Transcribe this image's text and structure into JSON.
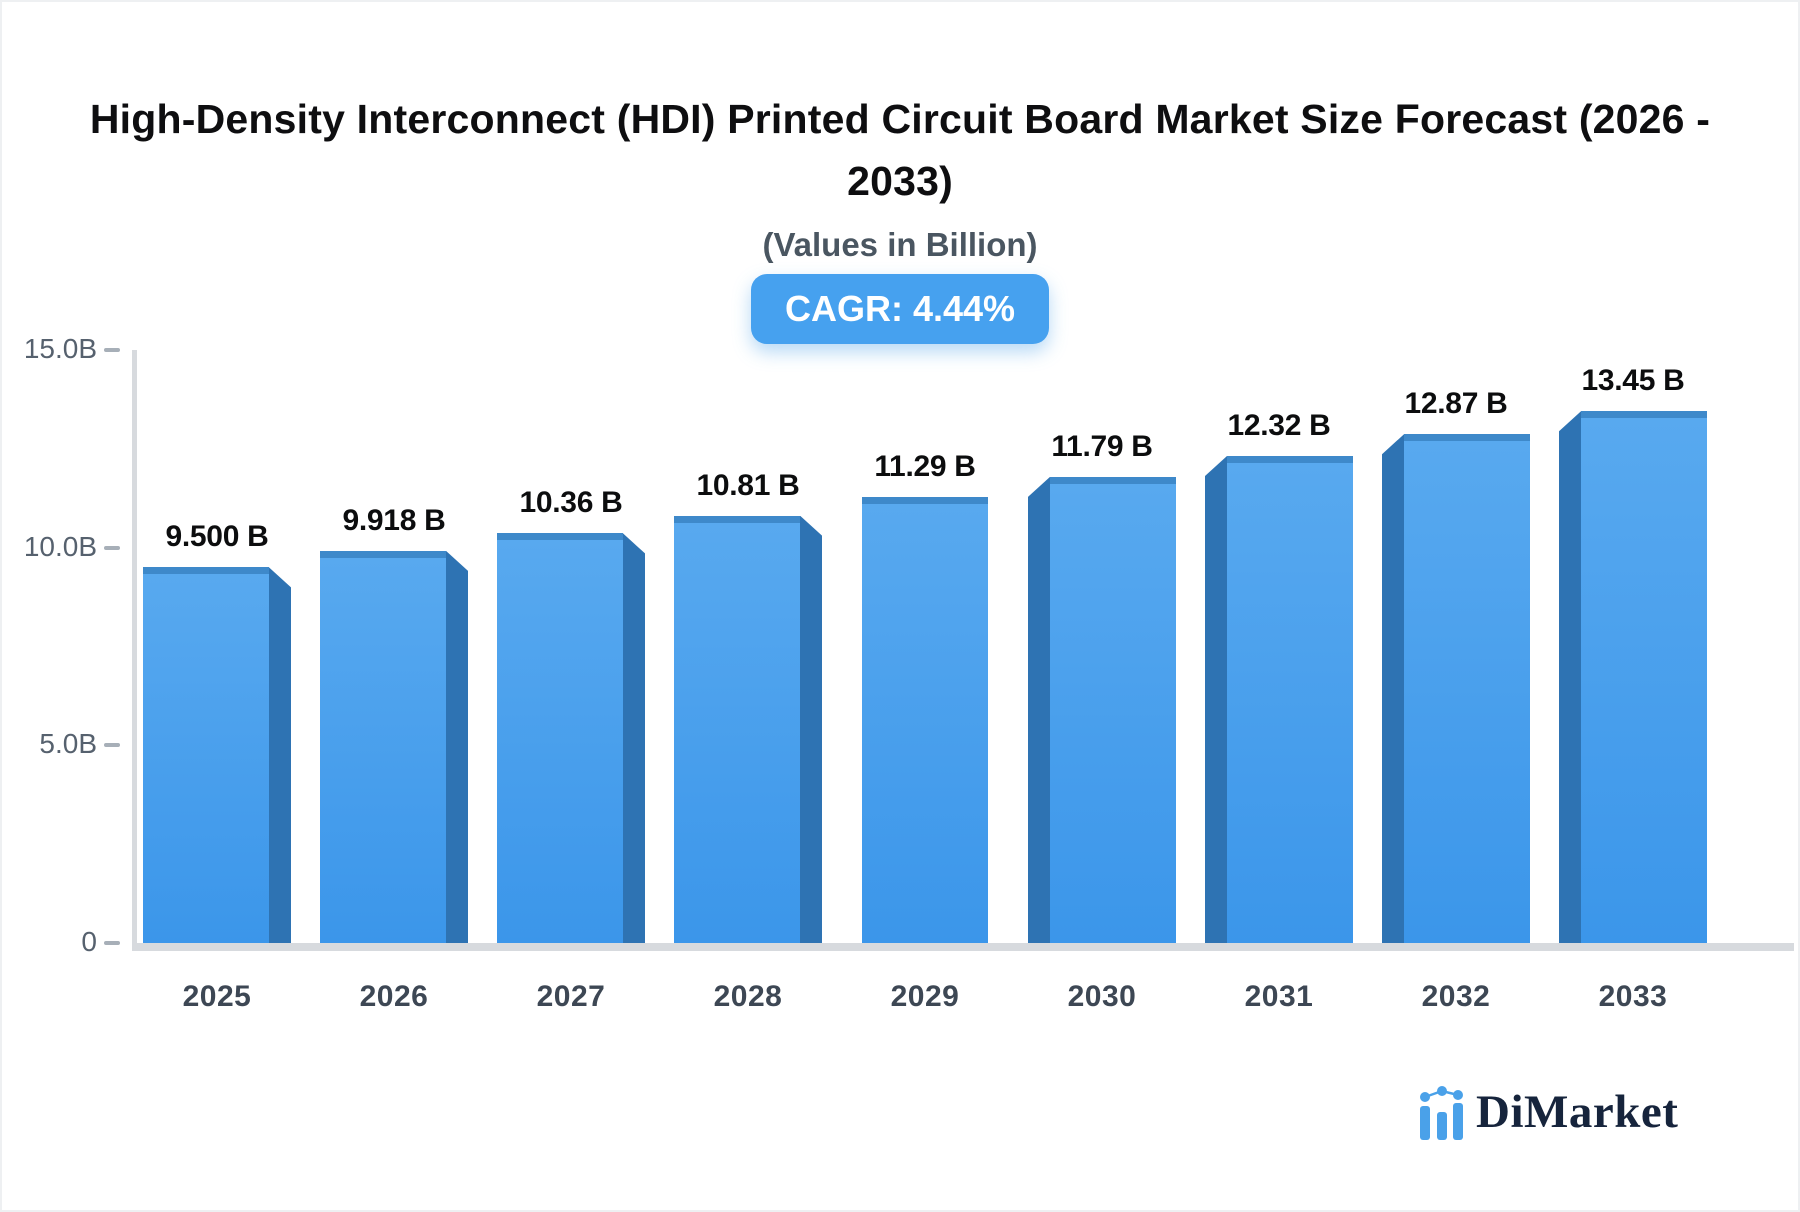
{
  "header": {
    "title": "High-Density Interconnect (HDI) Printed Circuit Board Market Size Forecast (2026 - 2033)",
    "subtitle": "(Values in Billion)",
    "cagr_badge": "CAGR: 4.44%"
  },
  "branding": {
    "logo_text": "DiMarket",
    "logo_icon": "bar-chart-trend-icon"
  },
  "colors": {
    "bar_face_top": "#58a9ef",
    "bar_face_bottom": "#3b96ea",
    "bar_side": "#2e73b3",
    "bar_top_edge": "#3e89ca",
    "badge_bg": "#46a1ef",
    "axis": "#d7dade",
    "tick": "#a7afb8",
    "logo_blue": "#4aa1e9"
  },
  "chart_data": {
    "type": "bar",
    "title": "High-Density Interconnect (HDI) Printed Circuit Board Market Size Forecast (2026 - 2033)",
    "subtitle": "(Values in Billion)",
    "annotation": "CAGR: 4.44%",
    "categories": [
      "2025",
      "2026",
      "2027",
      "2028",
      "2029",
      "2030",
      "2031",
      "2032",
      "2033"
    ],
    "values": [
      9.5,
      9.918,
      10.36,
      10.81,
      11.29,
      11.79,
      12.32,
      12.87,
      13.45
    ],
    "value_labels": [
      "9.500 B",
      "9.918 B",
      "10.36 B",
      "10.81 B",
      "11.29 B",
      "11.79 B",
      "12.32 B",
      "12.87 B",
      "13.45 B"
    ],
    "xlabel": "",
    "ylabel": "",
    "ylim": [
      0,
      15
    ],
    "yticks": [
      {
        "value": 15,
        "label": "15.0B"
      },
      {
        "value": 10,
        "label": "10.0B"
      },
      {
        "value": 5,
        "label": "5.0B"
      },
      {
        "value": 0,
        "label": "0"
      }
    ],
    "grid": false,
    "legend": false,
    "bar_style": "3d"
  }
}
